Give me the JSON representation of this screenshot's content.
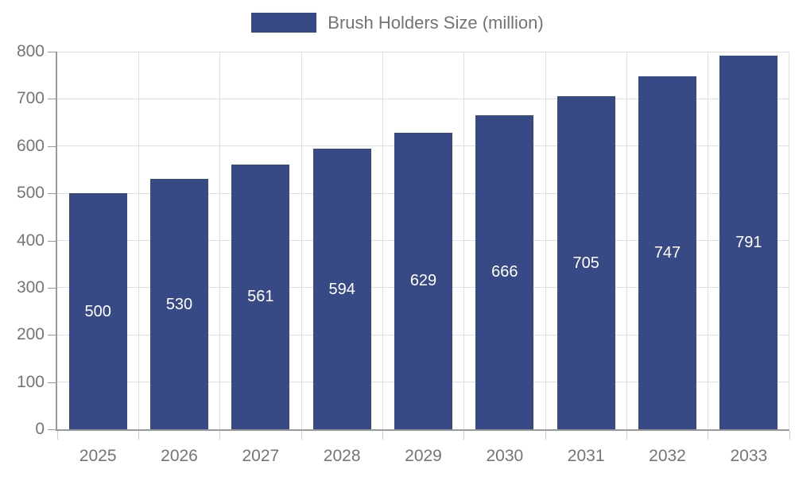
{
  "legend": {
    "label": "Brush Holders Size (million)"
  },
  "colors": {
    "bar": "#374A86",
    "bar_label": "#FFFFFF",
    "axis_text": "#757575",
    "legend_text": "#747474",
    "axis_line": "#999999",
    "gridline": "#E0E0E0",
    "x_tick": "#CCCCCC"
  },
  "chart_data": {
    "type": "bar",
    "title": "Brush Holders Size (million)",
    "categories": [
      "2025",
      "2026",
      "2027",
      "2028",
      "2029",
      "2030",
      "2031",
      "2032",
      "2033"
    ],
    "series": [
      {
        "name": "Brush Holders Size (million)",
        "values": [
          500,
          530,
          561,
          594,
          629,
          666,
          705,
          747,
          791
        ]
      }
    ],
    "xlabel": "",
    "ylabel": "",
    "ylim": [
      0,
      800
    ],
    "ytick_step": 100,
    "ytick_labels": [
      "0",
      "100",
      "200",
      "300",
      "400",
      "500",
      "600",
      "700",
      "800"
    ],
    "grid": true,
    "legend_position": "top-center",
    "value_label_position": "center-inside",
    "value_label_color": "#FFFFFF"
  }
}
